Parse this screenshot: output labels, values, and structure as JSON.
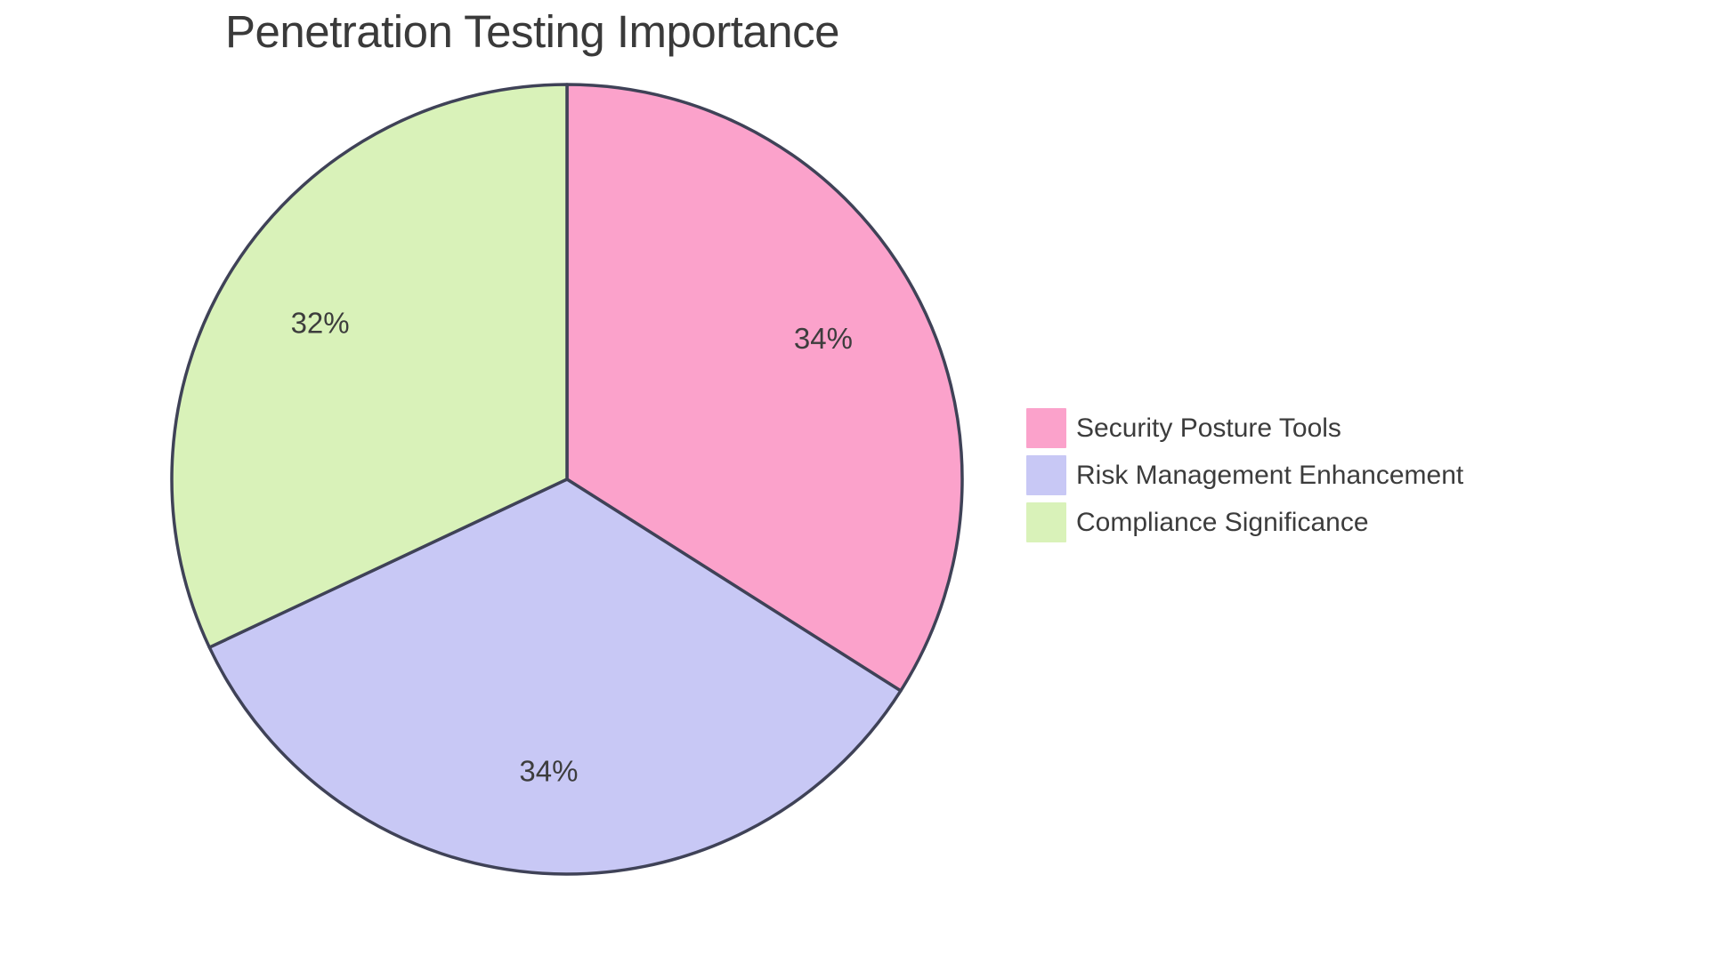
{
  "page": {
    "background_color": "#FFFFFF"
  },
  "chart_data": {
    "type": "pie",
    "title": "Penetration Testing Importance",
    "labels": [
      "Security Posture Tools",
      "Risk Management Enhancement",
      "Compliance Significance"
    ],
    "values": [
      34,
      34,
      32
    ],
    "value_labels": [
      "34%",
      "34%",
      "32%"
    ],
    "colors": [
      "#FBA2CB",
      "#C8C8F5",
      "#D9F2B9"
    ],
    "stroke_color": "#3F4257",
    "slice_label_color": "#3D3D3D",
    "title_color": "#3A3A3A",
    "legend_text_color": "#3C3C3C",
    "start_angle_deg": 0,
    "direction": "clockwise",
    "legend_position": "right",
    "grid": false
  }
}
